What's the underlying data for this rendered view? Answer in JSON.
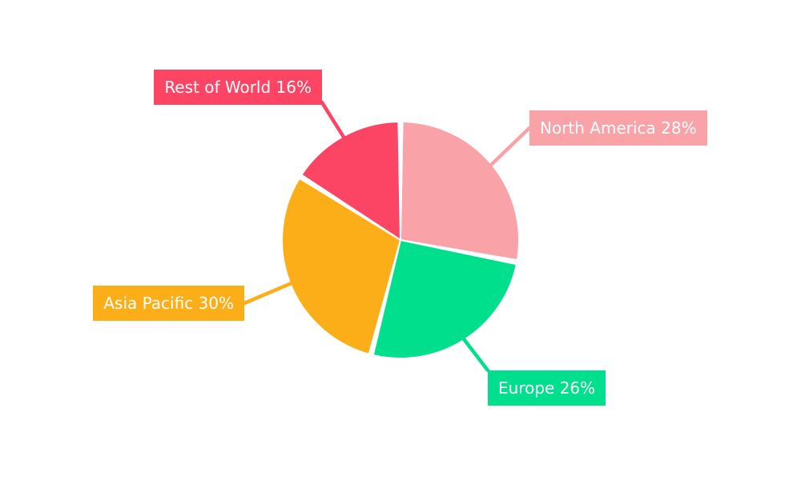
{
  "page": {
    "background": "#ffffff"
  },
  "chart_data": {
    "type": "pie",
    "title": "",
    "categories": [
      "North America",
      "Europe",
      "Asia Pacific",
      "Rest of World"
    ],
    "values": [
      28,
      26,
      30,
      16
    ],
    "value_unit": "%",
    "colors": [
      "#F9A2A7",
      "#00E08C",
      "#FBAE17",
      "#FC4564"
    ],
    "slice_labels": [
      "North America 28%",
      "Europe 26%",
      "Asia Pacific 30%",
      "Rest of World 16%"
    ],
    "start_angle_deg": 0,
    "direction": "clockwise",
    "legend_position": "none",
    "label_style": "callout-boxes-with-leader-lines",
    "text_color": "#ffffff",
    "separator_color": "#ffffff"
  }
}
